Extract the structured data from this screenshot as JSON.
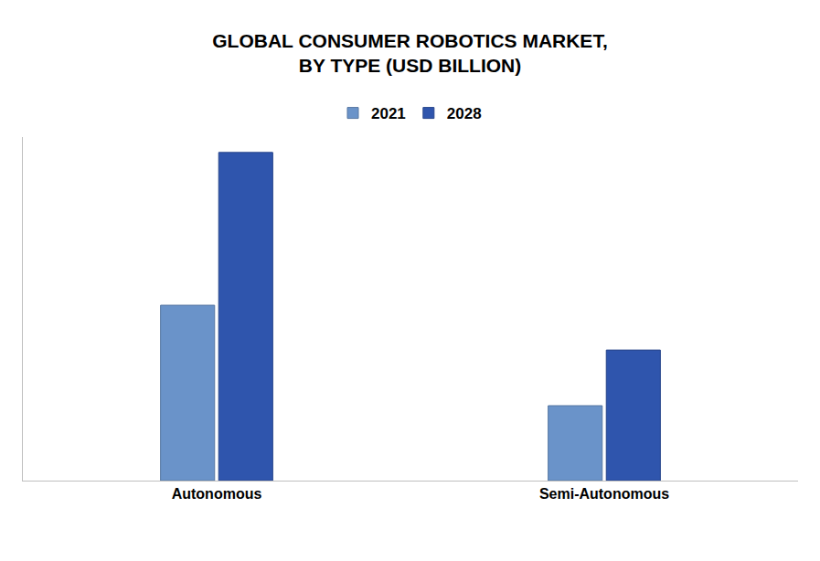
{
  "chart_data": {
    "type": "bar",
    "title": "GLOBAL CONSUMER ROBOTICS MARKET,\nBY TYPE (USD BILLION)",
    "categories": [
      "Autonomous",
      "Semi-Autonomous"
    ],
    "series": [
      {
        "name": "2021",
        "color": "#6a93c9",
        "values": [
          5.36,
          2.29
        ]
      },
      {
        "name": "2028",
        "color": "#2f55ad",
        "values": [
          10.03,
          3.99
        ]
      }
    ],
    "ylim": [
      0,
      10.5
    ],
    "grid": false,
    "legend": "top",
    "tick_labels": "x"
  }
}
